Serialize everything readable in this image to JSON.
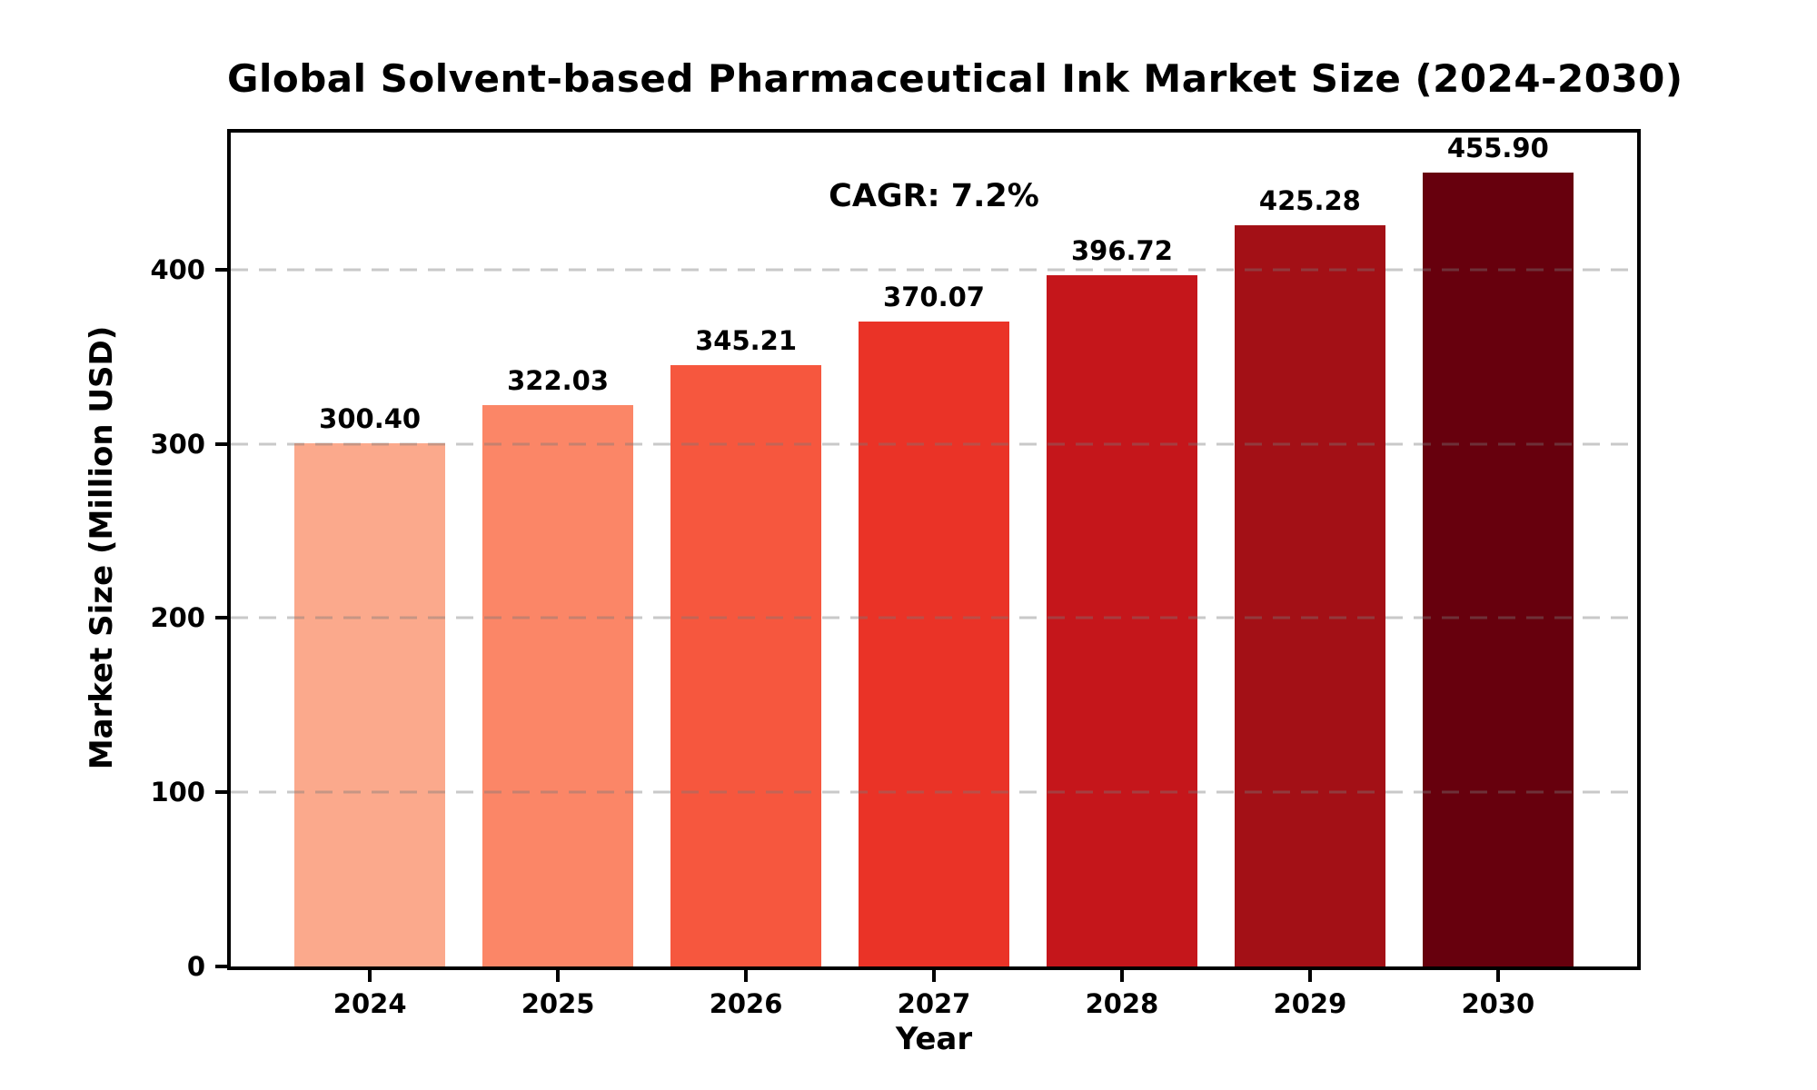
{
  "chart_data": {
    "type": "bar",
    "title": "Global Solvent-based Pharmaceutical Ink Market Size (2024-2030)",
    "xlabel": "Year",
    "ylabel": "Market Size (Million USD)",
    "annotation": "CAGR: 7.2%",
    "categories": [
      "2024",
      "2025",
      "2026",
      "2027",
      "2028",
      "2029",
      "2030"
    ],
    "values": [
      300.4,
      322.03,
      345.21,
      370.07,
      396.72,
      425.28,
      455.9
    ],
    "bar_labels": [
      "300.40",
      "322.03",
      "345.21",
      "370.07",
      "396.72",
      "425.28",
      "455.90"
    ],
    "bar_colors": [
      "#FBA98C",
      "#FB8667",
      "#F6573E",
      "#EA3327",
      "#C5161B",
      "#A31016",
      "#67000D"
    ],
    "ylim": [
      0,
      478.7
    ],
    "yticks": [
      0,
      100,
      200,
      300,
      400
    ],
    "ytick_labels": [
      "0",
      "100",
      "200",
      "300",
      "400"
    ],
    "grid": {
      "axis": "y",
      "style": "dashed",
      "color": "rgba(120,120,120,0.40)",
      "drawn_above_bars": true
    },
    "legend": "none",
    "spine_color": "#000000",
    "background_color": "#FFFFFF",
    "text_color": "#000000"
  }
}
